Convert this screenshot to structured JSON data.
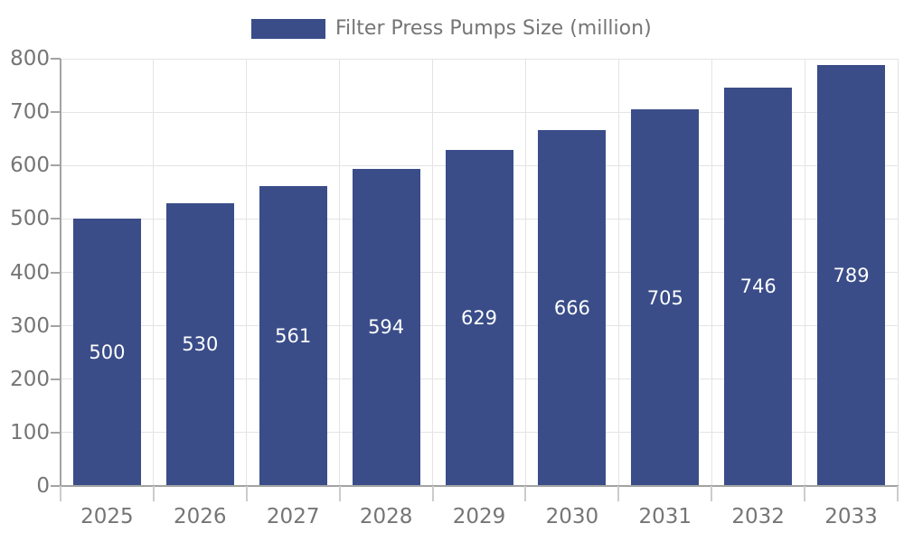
{
  "chart_data": {
    "type": "bar",
    "title": "Filter Press Pumps Size (million)",
    "categories": [
      "2025",
      "2026",
      "2027",
      "2028",
      "2029",
      "2030",
      "2031",
      "2032",
      "2033"
    ],
    "values": [
      500,
      530,
      561,
      594,
      629,
      666,
      705,
      746,
      789
    ],
    "xlabel": "",
    "ylabel": "",
    "ylim": [
      0,
      800
    ],
    "yticks": [
      0,
      100,
      200,
      300,
      400,
      500,
      600,
      700,
      800
    ],
    "grid": true,
    "legend_position": "top-center",
    "value_labels_position": "inside-center"
  },
  "colors": {
    "bar": "#3a4d89",
    "grid": "#e4e4e4",
    "axis": "#a3a3a3",
    "minor_tick": "#cccccc",
    "label_text": "#757575",
    "value_label_text": "#ffffff",
    "background": "#ffffff"
  }
}
